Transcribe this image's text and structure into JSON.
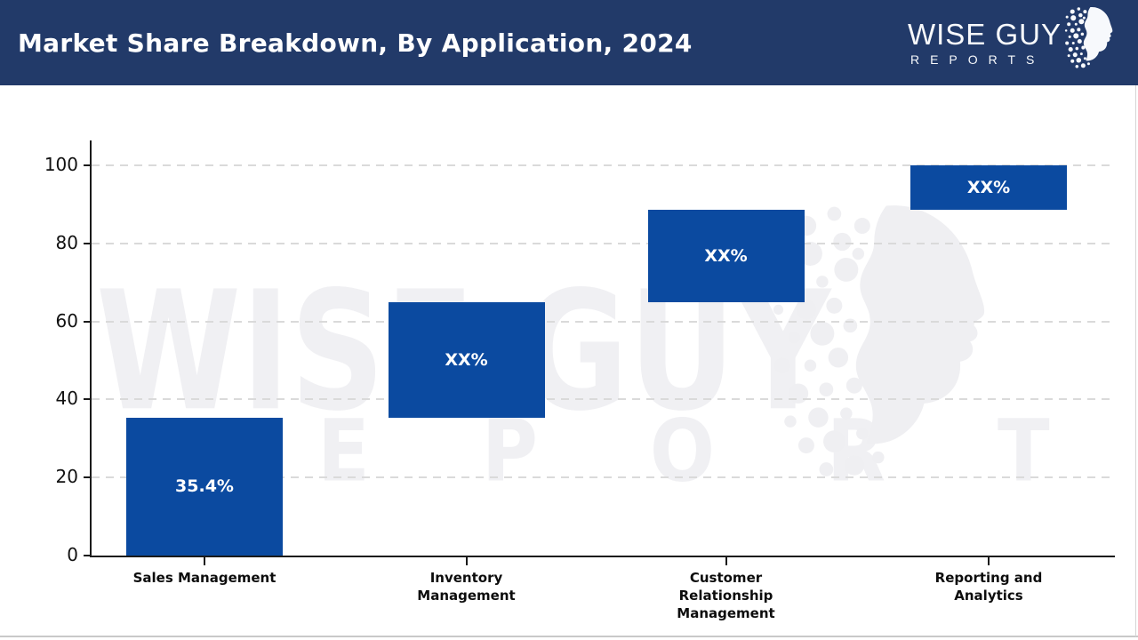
{
  "header": {
    "title": "Market Share Breakdown, By Application, 2024",
    "logo": {
      "name": "WISE GUY",
      "subname": "REPORTS"
    }
  },
  "watermark": {
    "wordmark": "WISE GUY",
    "subword": "R E P O R T S"
  },
  "colors": {
    "header_bg": "#223a69",
    "bar_blue": "#0b4aa0",
    "watermark_gray": "#f0f0f3",
    "grid_gray": "#dadada",
    "axis_black": "#1a1a1a",
    "value_label": "#ffffff"
  },
  "chart_data": {
    "type": "bar",
    "subtype": "stacked-waterfall-segments",
    "title": "Market Share Breakdown, By Application, 2024",
    "xlabel": "",
    "ylabel": "",
    "ylim": [
      0,
      100
    ],
    "yticks": [
      0,
      20,
      40,
      60,
      80,
      100
    ],
    "grid": "horizontal-dashed",
    "legend": "none",
    "bar_color": "#0b4aa0",
    "categories": [
      "Sales Management",
      "Inventory Management",
      "Customer Relationship Management",
      "Reporting and Analytics"
    ],
    "category_label_lines": [
      [
        "Sales Management"
      ],
      [
        "Inventory",
        "Management"
      ],
      [
        "Customer",
        "Relationship",
        "Management"
      ],
      [
        "Reporting and",
        "Analytics"
      ]
    ],
    "series": [
      {
        "name": "Sales Management",
        "start": 0,
        "end": 35.4,
        "value": 35.4,
        "label": "35.4%"
      },
      {
        "name": "Inventory Management",
        "start": 35.4,
        "end": 65.0,
        "value": 29.6,
        "label": "XX%"
      },
      {
        "name": "Customer Relationship Management",
        "start": 65.0,
        "end": 88.7,
        "value": 23.7,
        "label": "XX%"
      },
      {
        "name": "Reporting and Analytics",
        "start": 88.7,
        "end": 100.0,
        "value": 11.3,
        "label": "XX%"
      }
    ]
  }
}
